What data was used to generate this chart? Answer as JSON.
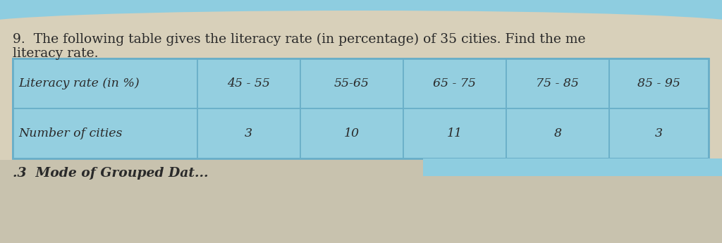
{
  "title_line1": "9.  The following table gives the literacy rate (in percentage) of 35 cities. Find the me",
  "title_line2": "literacy rate.",
  "col_headers": [
    "Literacy rate (in %)",
    "45 - 55",
    "55-65",
    "65 - 75",
    "75 - 85",
    "85 - 95"
  ],
  "row_label": "Number of cities",
  "row_values": [
    "3",
    "10",
    "11",
    "8",
    "3"
  ],
  "table_bg": "#94cfe0",
  "table_border": "#6aafc8",
  "text_color": "#2a2a2a",
  "page_bg": "#d8d0ba",
  "top_bar_color": "#8ecde0",
  "bottom_section_bg": "#c8c0aa",
  "font_size_title": 13.5,
  "font_size_table": 12.5,
  "font_size_bottom": 13.5
}
